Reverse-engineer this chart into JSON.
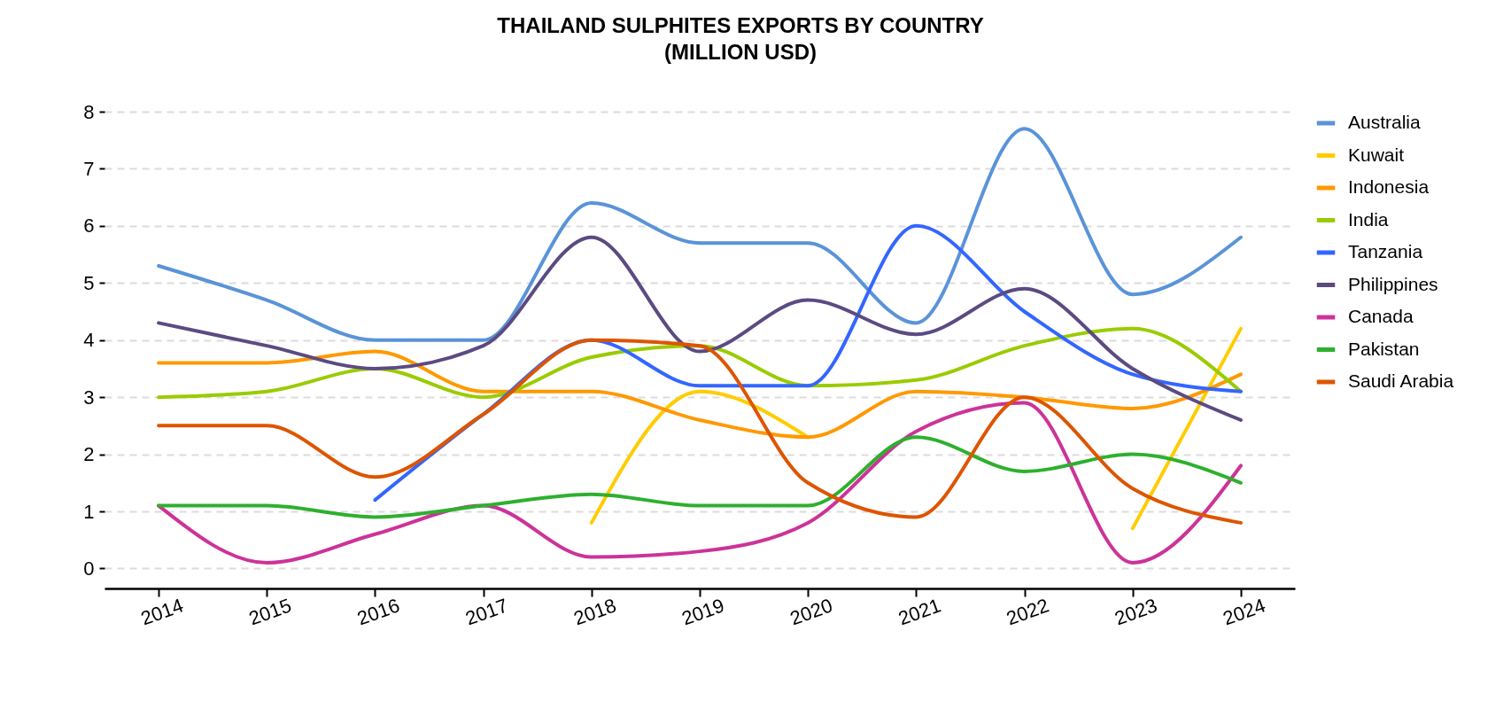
{
  "chart_data": {
    "type": "line",
    "title": "THAILAND SULPHITES EXPORTS BY COUNTRY",
    "subtitle": "(MILLION USD)",
    "x": [
      2014,
      2015,
      2016,
      2017,
      2018,
      2019,
      2020,
      2021,
      2022,
      2023,
      2024
    ],
    "xlim": [
      2013.5,
      2024.5
    ],
    "xticks": [
      2014,
      2015,
      2016,
      2017,
      2018,
      2019,
      2020,
      2021,
      2022,
      2023,
      2024
    ],
    "ylim": [
      -0.35,
      8
    ],
    "yticks": [
      0,
      1,
      2,
      3,
      4,
      5,
      6,
      7,
      8
    ],
    "grid": "y",
    "legend": "right",
    "series": [
      {
        "name": "Australia",
        "color": "#5a93d8",
        "values": [
          5.3,
          4.7,
          4.0,
          4.0,
          6.4,
          5.7,
          5.7,
          4.3,
          7.7,
          4.8,
          5.8
        ]
      },
      {
        "name": "Kuwait",
        "color": "#ffcc00",
        "values": [
          null,
          null,
          null,
          null,
          0.8,
          3.1,
          2.3,
          null,
          null,
          0.7,
          4.2
        ]
      },
      {
        "name": "Indonesia",
        "color": "#ff9900",
        "values": [
          3.6,
          3.6,
          3.8,
          3.1,
          3.1,
          2.6,
          2.3,
          3.1,
          3.0,
          2.8,
          3.4
        ]
      },
      {
        "name": "India",
        "color": "#99cc00",
        "values": [
          3.0,
          3.1,
          3.5,
          3.0,
          3.7,
          3.9,
          3.2,
          3.3,
          3.9,
          4.2,
          3.1
        ]
      },
      {
        "name": "Tanzania",
        "color": "#3366ff",
        "values": [
          null,
          null,
          1.2,
          2.7,
          4.0,
          3.2,
          3.2,
          6.0,
          4.5,
          3.4,
          3.1
        ]
      },
      {
        "name": "Philippines",
        "color": "#5c4a82",
        "values": [
          4.3,
          3.9,
          3.5,
          3.9,
          5.8,
          3.8,
          4.7,
          4.1,
          4.9,
          3.5,
          2.6
        ]
      },
      {
        "name": "Canada",
        "color": "#cc3399",
        "values": [
          1.1,
          0.1,
          0.6,
          1.1,
          0.2,
          0.3,
          0.8,
          2.4,
          2.9,
          0.1,
          1.8
        ]
      },
      {
        "name": "Pakistan",
        "color": "#2eb02e",
        "values": [
          1.1,
          1.1,
          0.9,
          1.1,
          1.3,
          1.1,
          1.1,
          2.3,
          1.7,
          2.0,
          1.5
        ]
      },
      {
        "name": "Saudi Arabia",
        "color": "#dd5500",
        "values": [
          2.5,
          2.5,
          1.6,
          2.7,
          4.0,
          3.9,
          1.5,
          0.9,
          3.0,
          1.4,
          0.8
        ]
      }
    ]
  }
}
